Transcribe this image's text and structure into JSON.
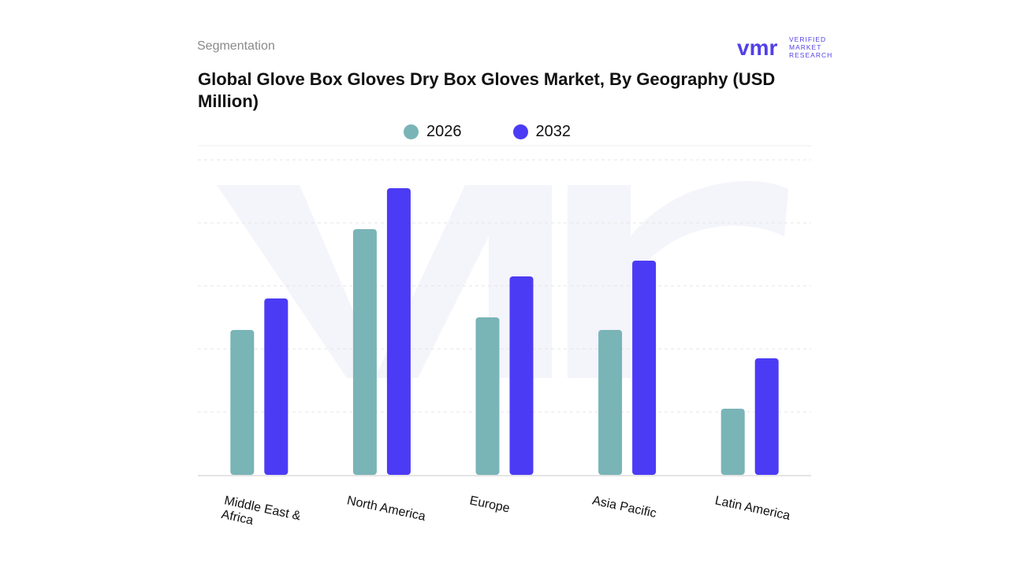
{
  "header": {
    "segment_label": "Segmentation",
    "title": "Global Glove Box Gloves Dry Box Gloves Market, By Geography (USD Million)"
  },
  "logo": {
    "mark": "vmr",
    "line1": "VERIFIED",
    "line2": "MARKET",
    "line3": "RESEARCH"
  },
  "colors": {
    "series_2026": "#79b4b7",
    "series_2032": "#4b3bf5",
    "grid": "#e6e6e6",
    "watermark": "#f3f3fa"
  },
  "chart_data": {
    "type": "bar",
    "categories": [
      "Middle East & Africa",
      "North America",
      "Europe",
      "Asia Pacific",
      "Latin America"
    ],
    "series": [
      {
        "name": "2026",
        "values": [
          46,
          78,
          50,
          46,
          21
        ]
      },
      {
        "name": "2032",
        "values": [
          56,
          91,
          63,
          68,
          37
        ]
      }
    ],
    "ylim": [
      0,
      100
    ],
    "grid": true,
    "legend_position": "top-center",
    "xlabel": "",
    "ylabel": ""
  }
}
